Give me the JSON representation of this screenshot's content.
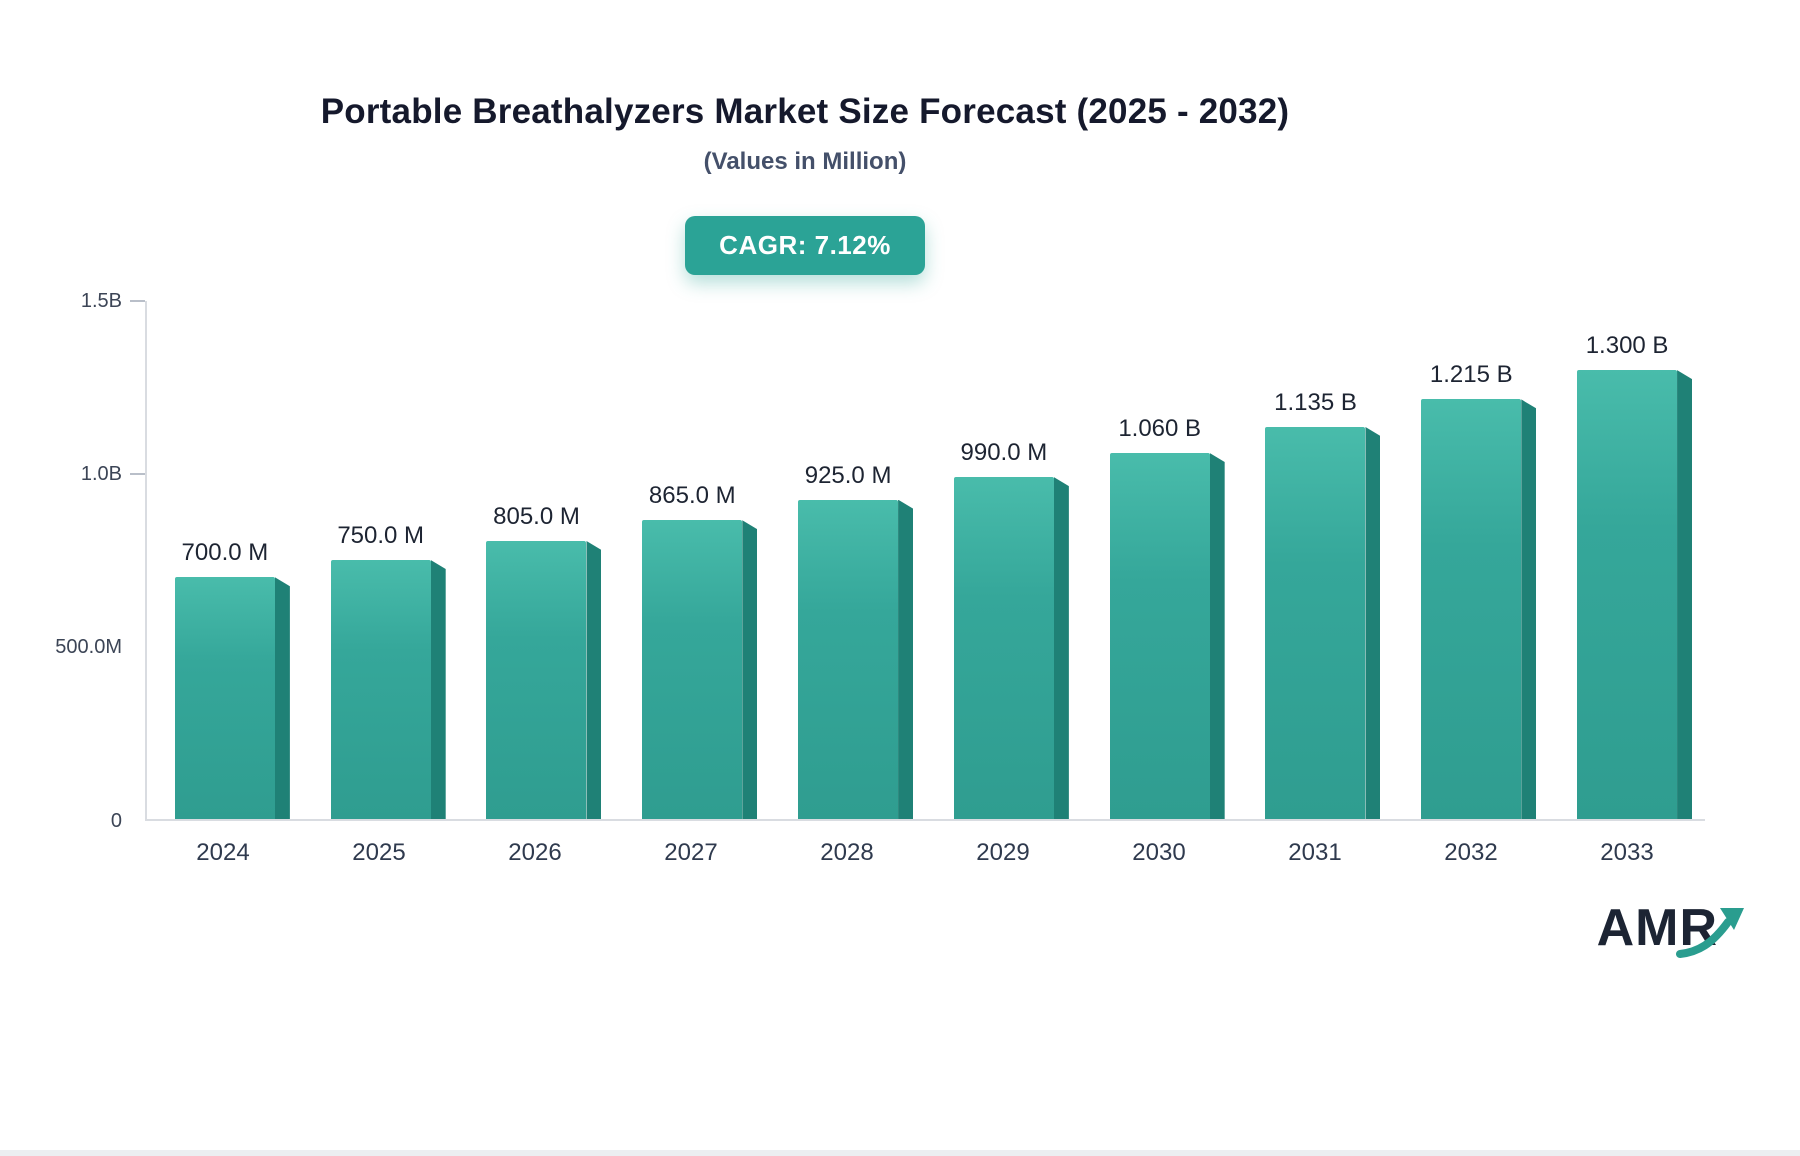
{
  "title": "Portable Breathalyzers Market Size Forecast (2025 - 2032)",
  "subtitle": "(Values in Million)",
  "badge": {
    "label": "CAGR: 7.12%"
  },
  "logo": {
    "text": "AMR"
  },
  "colors": {
    "bar_top": "#49bcab",
    "bar_main": "#35a79a",
    "bar_side": "#1f8176",
    "badge_bg": "#2ba396",
    "axis_line": "#d9dce1"
  },
  "chart_data": {
    "type": "bar",
    "title": "Portable Breathalyzers Market Size Forecast (2025 - 2032)",
    "subtitle": "(Values in Million)",
    "unit": "USD Million",
    "xlabel": "",
    "ylabel": "",
    "ylim": [
      0,
      1500
    ],
    "grid": false,
    "legend": "none",
    "categories": [
      "2024",
      "2025",
      "2026",
      "2027",
      "2028",
      "2029",
      "2030",
      "2031",
      "2032",
      "2033"
    ],
    "values": [
      700,
      750,
      805,
      865,
      925,
      990,
      1060,
      1135,
      1215,
      1300
    ],
    "value_labels": [
      "700.0 M",
      "750.0 M",
      "805.0 M",
      "865.0 M",
      "925.0 M",
      "990.0 M",
      "1.060 B",
      "1.135 B",
      "1.215 B",
      "1.300 B"
    ],
    "yticks": [
      {
        "value": 0,
        "label": "0",
        "dash": false
      },
      {
        "value": 500,
        "label": "500.0M",
        "dash": false
      },
      {
        "value": 1000,
        "label": "1.0B",
        "dash": true
      },
      {
        "value": 1500,
        "label": "1.5B",
        "dash": true
      }
    ],
    "annotations": [
      "CAGR: 7.12%"
    ]
  }
}
